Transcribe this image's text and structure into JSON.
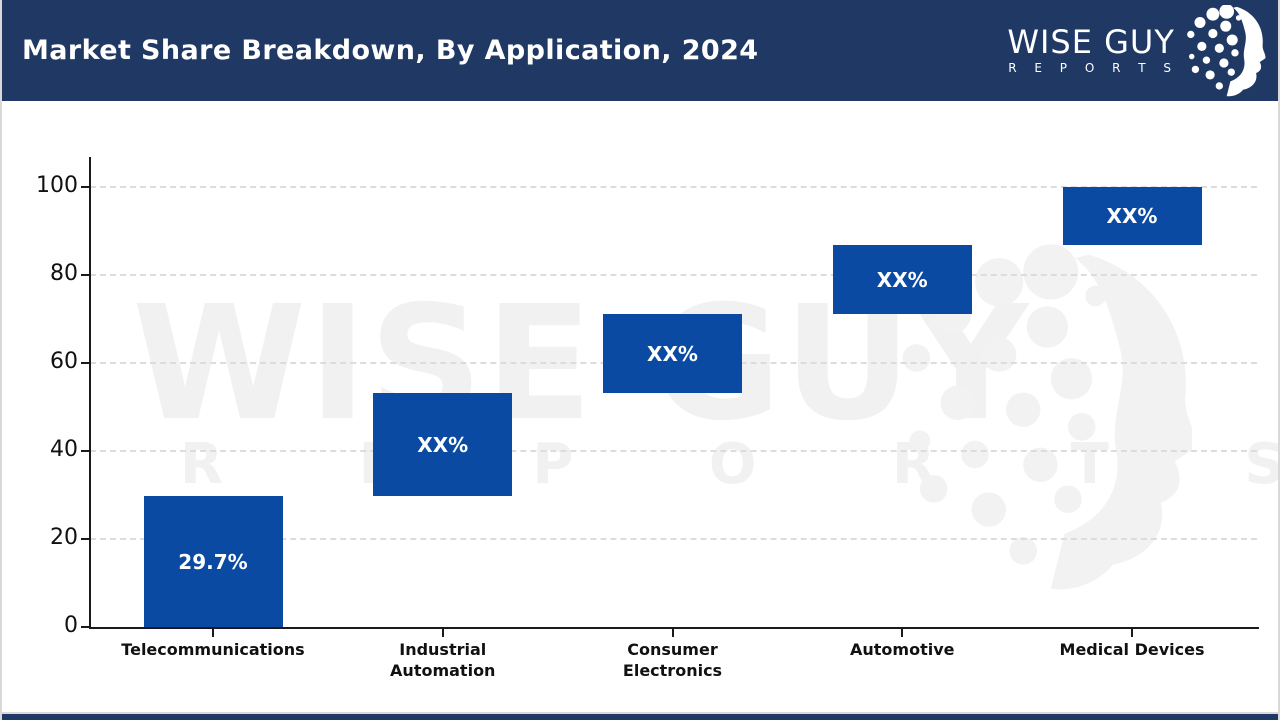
{
  "header": {
    "title": "Market Share Breakdown, By Application, 2024",
    "bg_color": "#1F3864",
    "logo": {
      "line1": "WISE GUY",
      "line2": "R E P O R T S"
    }
  },
  "watermark": {
    "line1": "WISE GUY",
    "line2": "R E P O R T S"
  },
  "footer": {
    "bg_color": "#1F3864"
  },
  "chart_data": {
    "type": "bar",
    "variant": "waterfall",
    "title": "Market Share Breakdown, By Application, 2024",
    "categories": [
      "Telecommunications",
      "Industrial\nAutomation",
      "Consumer\nElectronics",
      "Automotive",
      "Medical Devices"
    ],
    "segments": [
      {
        "category": "Telecommunications",
        "start": 0,
        "end": 29.7,
        "label": "29.7%"
      },
      {
        "category": "Industrial Automation",
        "start": 29.7,
        "end": 53.2,
        "label": "XX%"
      },
      {
        "category": "Consumer Electronics",
        "start": 53.2,
        "end": 71.1,
        "label": "XX%"
      },
      {
        "category": "Automotive",
        "start": 71.1,
        "end": 86.8,
        "label": "XX%"
      },
      {
        "category": "Medical Devices",
        "start": 86.8,
        "end": 100,
        "label": "XX%"
      }
    ],
    "yticks": [
      0,
      20,
      40,
      60,
      80,
      100
    ],
    "ylim": [
      0,
      106
    ],
    "xlabel": "",
    "ylabel": "",
    "grid": "horizontal-dashed",
    "legend": "none",
    "bar_color": "#0B4AA2",
    "bar_label_color": "#FFFFFF",
    "axis_color": "#1a1a1a",
    "grid_color": "#dcdcdc"
  }
}
